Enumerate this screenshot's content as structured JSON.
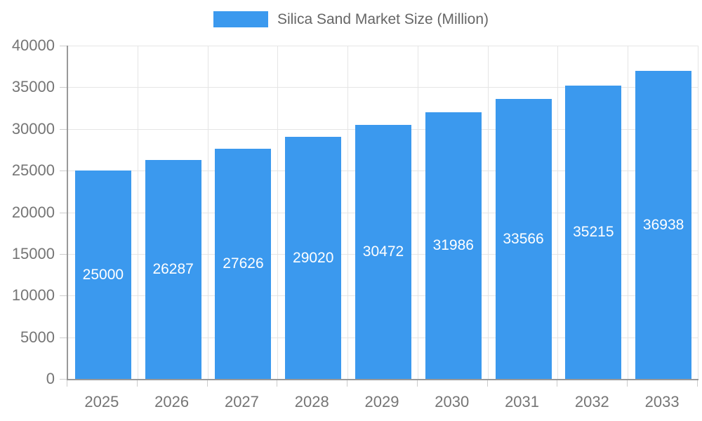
{
  "legend": {
    "label": "Silica Sand Market Size (Million)",
    "swatch_color": "#3b99ee"
  },
  "chart_data": {
    "type": "bar",
    "title": "Silica Sand Market Size (Million)",
    "categories": [
      "2025",
      "2026",
      "2027",
      "2028",
      "2029",
      "2030",
      "2031",
      "2032",
      "2033"
    ],
    "values": [
      25000,
      26287,
      27626,
      29020,
      30472,
      31986,
      33566,
      35215,
      36938
    ],
    "value_labels": [
      "25000",
      "26287",
      "27626",
      "29020",
      "30472",
      "31986",
      "33566",
      "35215",
      "36938"
    ],
    "xlabel": "",
    "ylabel": "",
    "ylim": [
      0,
      40000
    ],
    "y_tick_step": 5000,
    "y_ticks": [
      0,
      5000,
      10000,
      15000,
      20000,
      25000,
      30000,
      35000,
      40000
    ],
    "grid": true,
    "legend_position": "top",
    "bar_color": "#3b99ee",
    "value_label_color": "#ffffff",
    "axis_text_color": "#757575",
    "grid_color": "#e5e5e5",
    "axis_line_color": "#999999"
  }
}
